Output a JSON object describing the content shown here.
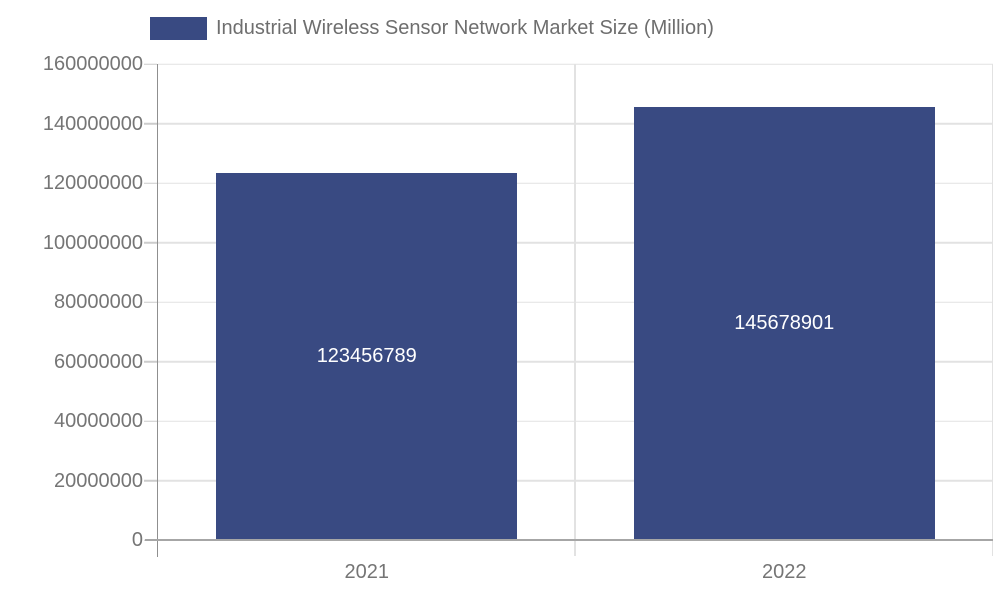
{
  "chart_data": {
    "type": "bar",
    "title": "Industrial Wireless Sensor Network Market Size (Million)",
    "legend": {
      "label": "Industrial Wireless Sensor Network Market Size (Million)",
      "position": "top"
    },
    "categories": [
      "2021",
      "2022"
    ],
    "series": [
      {
        "name": "Industrial Wireless Sensor Network Market Size (Million)",
        "values": [
          123456789,
          145678901
        ],
        "value_labels": [
          "123456789",
          "145678901"
        ]
      }
    ],
    "xlabel": "",
    "ylabel": "",
    "ylim": [
      0,
      160000000
    ],
    "ytick_step": 20000000,
    "ytick_labels": [
      "0",
      "20000000",
      "40000000",
      "60000000",
      "80000000",
      "100000000",
      "120000000",
      "140000000",
      "160000000"
    ],
    "grid": true,
    "colors": {
      "bar": "#394a82",
      "grid_line": "#e2e2e2",
      "x_axis_line": "#a6a6a6",
      "y_axis_line": "#8f8f8f",
      "tick_mark": "#cccccc",
      "axis_text": "#757575",
      "legend_text": "#6e6e6e",
      "bar_label_text": "#ffffff",
      "background": "#ffffff"
    }
  }
}
